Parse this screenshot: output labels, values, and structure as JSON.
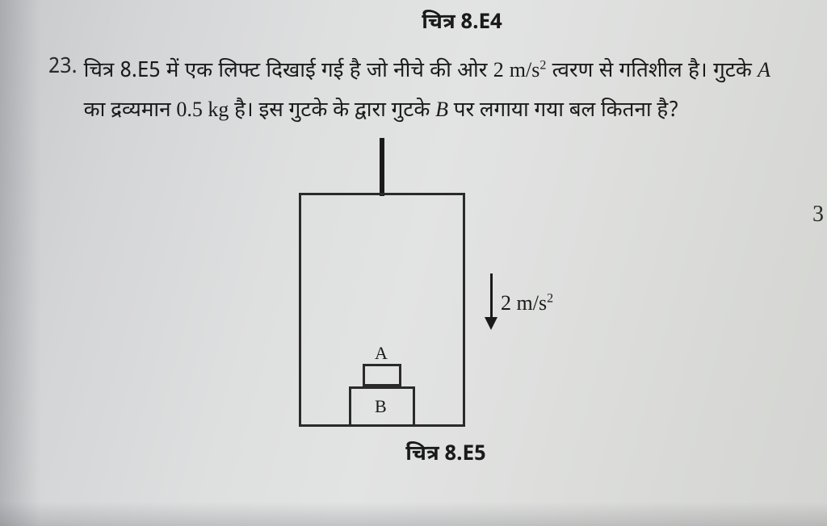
{
  "figure_top_label": "चित्र 8.E4",
  "question_number": "23.",
  "question_text_l1": "चित्र 8.E5 में एक लिफ्ट दिखाई गई है जो नीचे की ओर ",
  "accel_value": "2 m/s",
  "accel_exp": "2",
  "question_text_l2": " त्वरण से गतिशील है। गुटके ",
  "var_A": "A",
  "question_text_l3": " का द्रव्यमान ",
  "mass_value": "0.5 kg",
  "question_text_l4": " है। इस गुटके के द्वारा गुटके ",
  "var_B": "B",
  "question_text_l5": " पर लगाया गया बल कितना है?",
  "diagram": {
    "accel_label": "2 m/s",
    "accel_exp": "2",
    "block_a_label": "A",
    "block_b_label": "B"
  },
  "figure_bottom_label": "चित्र 8.E5",
  "edge_number": "3",
  "colors": {
    "text": "#1a1a1a",
    "border": "#2a2a2a"
  }
}
